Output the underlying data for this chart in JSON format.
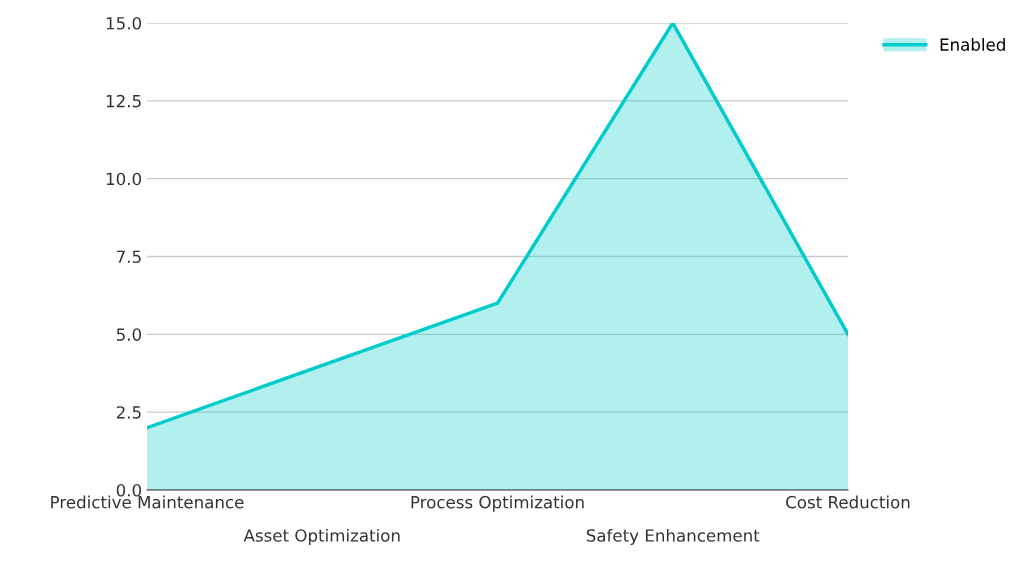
{
  "chart_data": {
    "type": "area",
    "categories": [
      "Predictive Maintenance",
      "Asset Optimization",
      "Process Optimization",
      "Safety Enhancement",
      "Cost Reduction"
    ],
    "series": [
      {
        "name": "Enabled",
        "color": "#00cccc",
        "values": [
          2,
          4,
          6,
          15,
          5
        ]
      }
    ],
    "ylim": [
      0,
      15
    ],
    "yticks": [
      {
        "value": 0,
        "label": "0.0"
      },
      2.5,
      {
        "value": 5,
        "label": "5.0"
      },
      7.5,
      {
        "value": 10,
        "label": "10.0"
      },
      12.5,
      {
        "value": 15,
        "label": "15.0"
      }
    ],
    "grid": "y",
    "legend": "top right"
  }
}
